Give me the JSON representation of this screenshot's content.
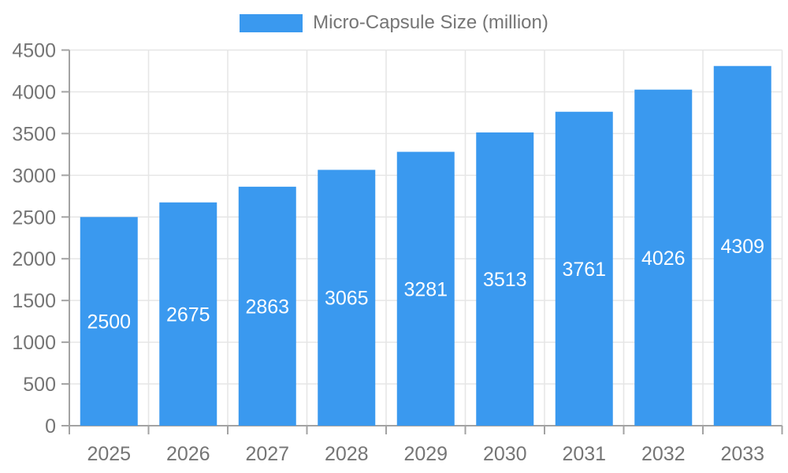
{
  "chart_data": {
    "type": "bar",
    "title": "",
    "legend": {
      "label": "Micro-Capsule Size (million)",
      "position": "top"
    },
    "categories": [
      "2025",
      "2026",
      "2027",
      "2028",
      "2029",
      "2030",
      "2031",
      "2032",
      "2033"
    ],
    "series": [
      {
        "name": "Micro-Capsule Size (million)",
        "values": [
          2500,
          2675,
          2863,
          3065,
          3281,
          3513,
          3761,
          4026,
          4309
        ]
      }
    ],
    "xlabel": "",
    "ylabel": "",
    "ylim": [
      0,
      4500
    ],
    "yticks": [
      0,
      500,
      1000,
      1500,
      2000,
      2500,
      3000,
      3500,
      4000,
      4500
    ],
    "grid": true,
    "colors": {
      "bar": "#3a99ef",
      "bar_value_label": "#ffffff",
      "axis_text": "#757575",
      "grid_line": "#e6e6e6",
      "axis_line": "#a3a3a3"
    }
  }
}
